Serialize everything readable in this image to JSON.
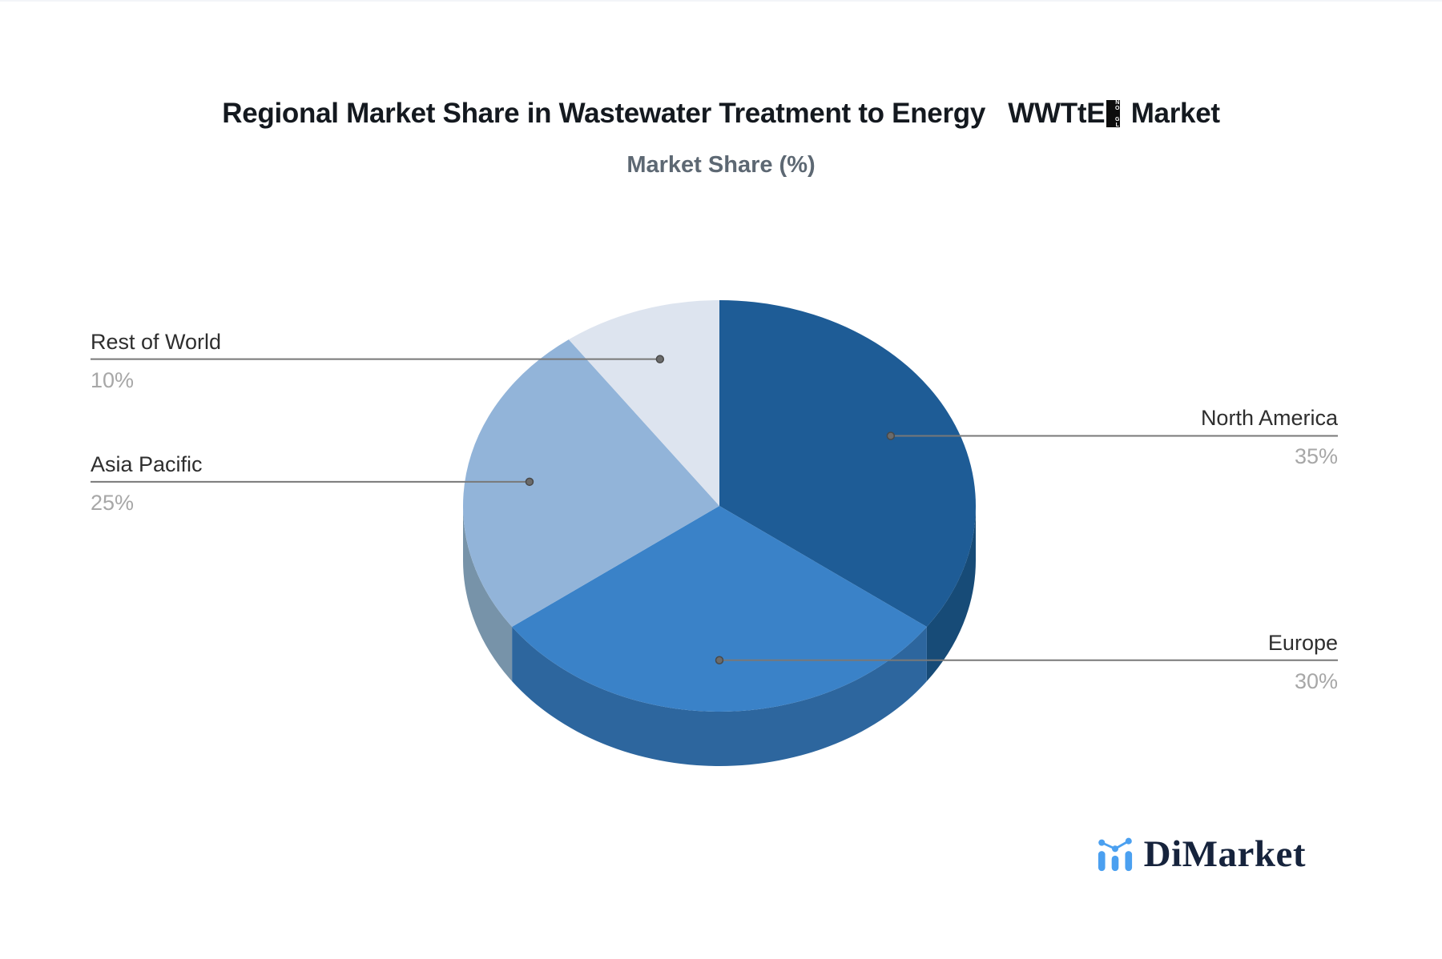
{
  "header": {
    "title_prefix": "Regional Market Share in Wastewater Treatment to Energy   WWTtE",
    "title_missing_glyph": "NO GLYPH",
    "title_suffix": " Market",
    "subtitle": "Market Share (%)"
  },
  "chart_data": {
    "type": "pie",
    "title": "Market Share (%)",
    "unit": "%",
    "three_d": true,
    "direction": "clockwise",
    "start_angle": "12-o-clock",
    "legend_position": "none",
    "labels": [
      "North America",
      "Europe",
      "Asia Pacific",
      "Rest of World"
    ],
    "values": [
      35,
      30,
      25,
      10
    ],
    "percent_labels": [
      "35%",
      "30%",
      "25%",
      "10%"
    ],
    "label_sides": [
      "right",
      "right",
      "left",
      "left"
    ],
    "colors": [
      "#1E5C96",
      "#3A82C8",
      "#92B4D9",
      "#DDE4EF"
    ],
    "side_colors": [
      "#174B77",
      "#2D669E",
      "#7793A9",
      "#B9C5D5"
    ]
  },
  "branding": {
    "logo_text": "DiMarket",
    "logo_icon": "bar-chart-trend-icon",
    "logo_icon_color": "#4BA0F0",
    "logo_text_color": "#16233c"
  },
  "style": {
    "background": "#ffffff",
    "title_color": "#14191f",
    "subtitle_color": "#5d6873",
    "label_name_color": "#2e2e2e",
    "label_pct_color": "#a7a7a7",
    "leader_line_color": "#787878",
    "leader_dot_color": "#6b6b6b"
  }
}
